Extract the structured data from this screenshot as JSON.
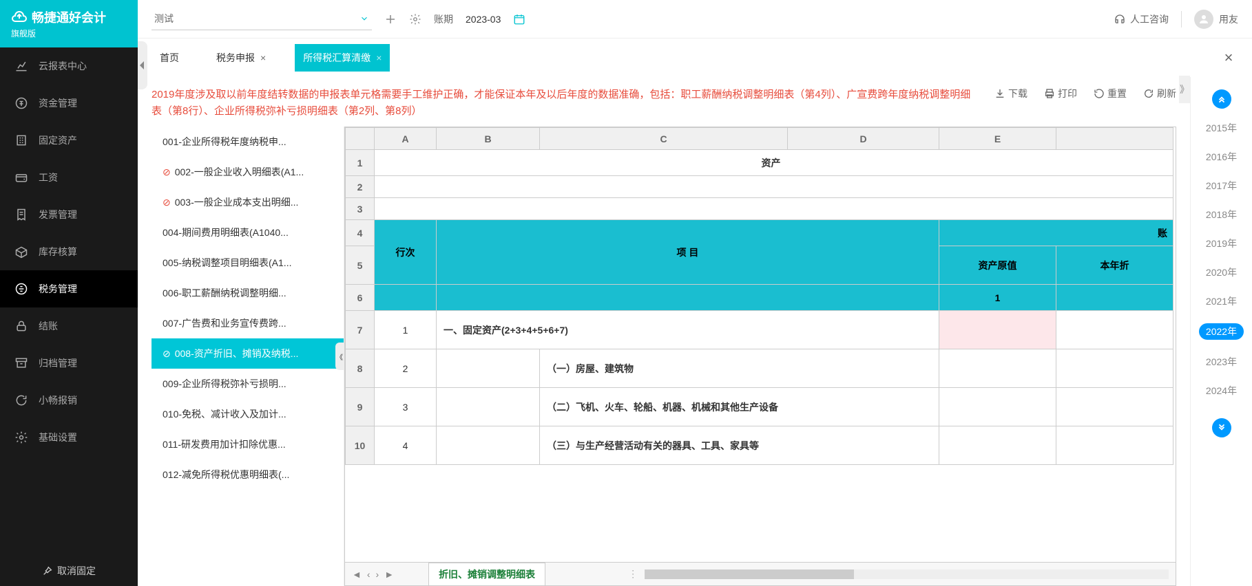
{
  "brand": {
    "title": "畅捷通好会计",
    "edition": "旗舰版"
  },
  "sidebar": {
    "items": [
      {
        "label": "云报表中心"
      },
      {
        "label": "资金管理"
      },
      {
        "label": "固定资产"
      },
      {
        "label": "工资"
      },
      {
        "label": "发票管理"
      },
      {
        "label": "库存核算"
      },
      {
        "label": "税务管理"
      },
      {
        "label": "结账"
      },
      {
        "label": "归档管理"
      },
      {
        "label": "小畅报销"
      },
      {
        "label": "基础设置"
      }
    ],
    "pin_label": "取消固定"
  },
  "topbar": {
    "company": "测试",
    "period_label": "账期",
    "period_value": "2023-03",
    "support": "人工咨询",
    "username": "用友"
  },
  "tabs": {
    "items": [
      {
        "label": "首页",
        "closable": false
      },
      {
        "label": "税务申报",
        "closable": true
      },
      {
        "label": "所得税汇算清缴",
        "closable": true
      }
    ],
    "active": 2
  },
  "warning": "2019年度涉及取以前年度结转数据的申报表单元格需要手工维护正确，才能保证本年及以后年度的数据准确，包括：职工薪酬纳税调整明细表（第4列）、广宣费跨年度纳税调整明细表（第8行）、企业所得税弥补亏损明细表（第2列、第8列）",
  "toolbar": {
    "download": "下载",
    "print": "打印",
    "reset": "重置",
    "refresh": "刷新"
  },
  "form_list": {
    "items": [
      {
        "label": "001-企业所得税年度纳税申...",
        "warn": false
      },
      {
        "label": "002-一般企业收入明细表(A1...",
        "warn": true
      },
      {
        "label": "003-一般企业成本支出明细...",
        "warn": true
      },
      {
        "label": "004-期间费用明细表(A1040...",
        "warn": false
      },
      {
        "label": "005-纳税调整项目明细表(A1...",
        "warn": false
      },
      {
        "label": "006-职工薪酬纳税调整明细...",
        "warn": false
      },
      {
        "label": "007-广告费和业务宣传费跨...",
        "warn": false
      },
      {
        "label": "008-资产折旧、摊销及纳税...",
        "warn": true
      },
      {
        "label": "009-企业所得税弥补亏损明...",
        "warn": false
      },
      {
        "label": "010-免税、减计收入及加计...",
        "warn": false
      },
      {
        "label": "011-研发费用加计扣除优惠...",
        "warn": false
      },
      {
        "label": "012-减免所得税优惠明细表(...",
        "warn": false
      }
    ],
    "active": 7
  },
  "spreadsheet": {
    "columns": [
      "A",
      "B",
      "C",
      "D",
      "E"
    ],
    "title_fragment": "资产",
    "header_account": "账",
    "header_row": "行次",
    "header_item": "项 目",
    "header_asset_value": "资产原值",
    "header_depr": "本年折",
    "header_col_1": "1",
    "rows": [
      {
        "n": "7",
        "line": "1",
        "item": "一、固定资产(2+3+4+5+6+7)",
        "span_b": true,
        "pink_e": true
      },
      {
        "n": "8",
        "line": "2",
        "item": "（一）房屋、建筑物",
        "span_b": false
      },
      {
        "n": "9",
        "line": "3",
        "item": "（二）飞机、火车、轮船、机器、机械和其他生产设备",
        "span_b": false
      },
      {
        "n": "10",
        "line": "4",
        "item": "（三）与生产经营活动有关的器具、工具、家具等",
        "span_b": false
      }
    ],
    "sheet_tab": "折旧、摊销调整明细表"
  },
  "years": {
    "items": [
      "2015年",
      "2016年",
      "2017年",
      "2018年",
      "2019年",
      "2020年",
      "2021年",
      "2022年",
      "2023年",
      "2024年"
    ],
    "active": "2022年"
  },
  "colors": {
    "brand": "#00c3d0",
    "header_teal": "#1abed0",
    "warning_text": "#e74c3c",
    "year_active": "#0099ff",
    "sheet_tab_text": "#1a7f37",
    "pink": "#fde7ea"
  }
}
